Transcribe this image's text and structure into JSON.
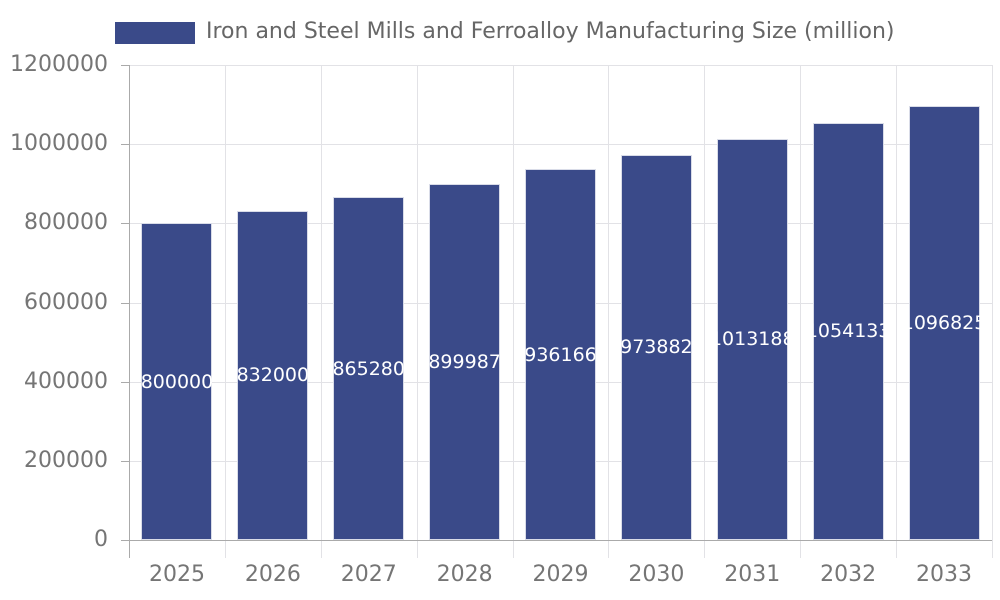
{
  "chart_data": {
    "type": "bar",
    "title": "Iron and Steel Mills and Ferroalloy Manufacturing Size (million)",
    "legend_entries": [
      "Iron and Steel Mills and Ferroalloy Manufacturing Size (million)"
    ],
    "legend_position": "top",
    "categories": [
      "2025",
      "2026",
      "2027",
      "2028",
      "2029",
      "2030",
      "2031",
      "2032",
      "2033"
    ],
    "values": [
      800000,
      832000,
      865280,
      899987,
      936166,
      973882,
      1013188,
      1054133,
      1096825
    ],
    "bar_labels": [
      "800000",
      "832000",
      "865280",
      "899987",
      "936166",
      "973882",
      "1013188",
      "1054133",
      "1096825"
    ],
    "xlabel": "",
    "ylabel": "",
    "ylim": [
      0,
      1200000
    ],
    "yticks": [
      0,
      200000,
      400000,
      600000,
      800000,
      1000000,
      1200000
    ],
    "ytick_labels": [
      "0",
      "200000",
      "400000",
      "600000",
      "800000",
      "1000000",
      "1200000"
    ],
    "grid": "on",
    "colors": {
      "bar_fill": "#3A4A89",
      "bar_edge": "#d9dce8",
      "bar_label_text": "#ffffff",
      "axis_text": "#757575",
      "legend_text": "#666666",
      "gridline": "#e2e2e6",
      "axis_line": "#aaaaaa",
      "background": "#ffffff"
    }
  }
}
